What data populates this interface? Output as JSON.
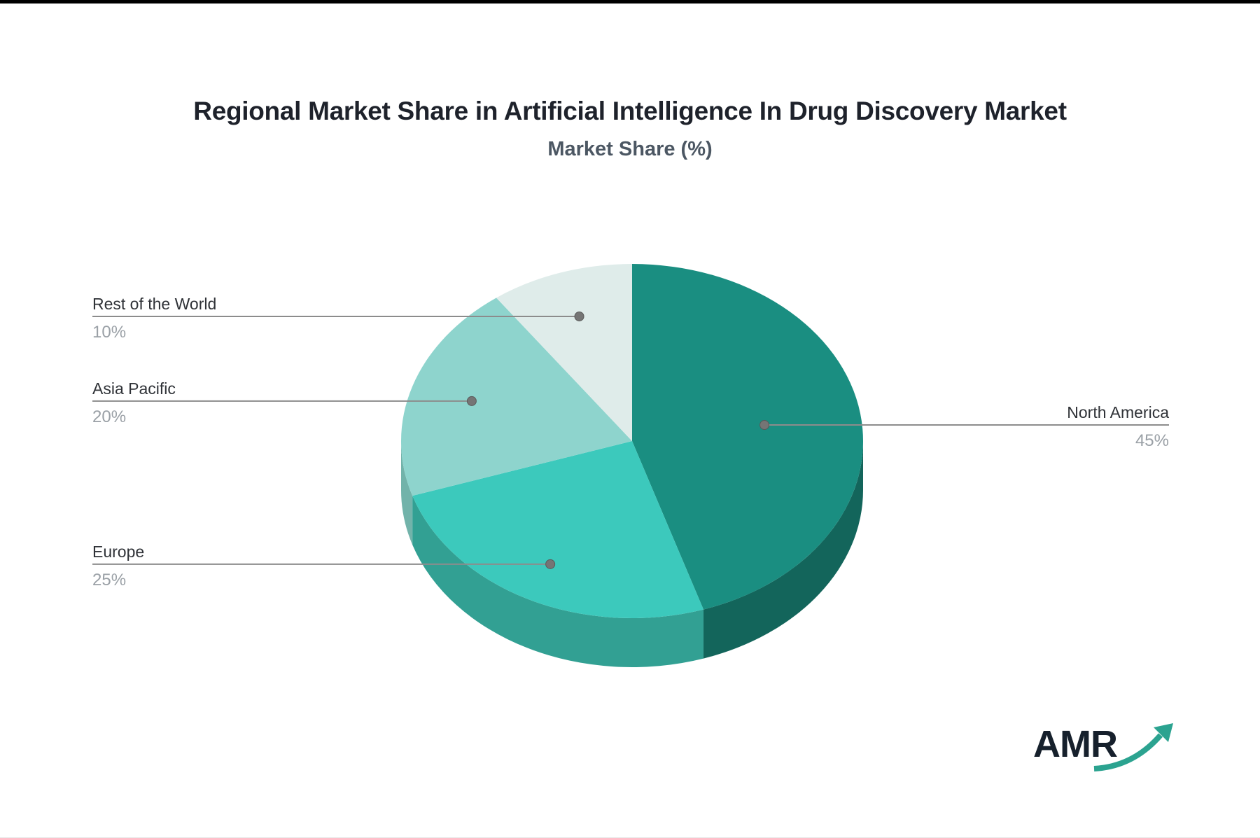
{
  "page": {
    "background": "#ffffff",
    "top_bar_color": "#000000"
  },
  "header": {
    "title": "Regional Market Share in Artificial Intelligence In Drug Discovery Market",
    "subtitle": "Market Share (%)"
  },
  "chart_data": {
    "type": "pie",
    "style": "3d",
    "title": "Regional Market Share in Artificial Intelligence In Drug Discovery Market",
    "subtitle": "Market Share (%)",
    "unit": "%",
    "start_angle_deg": 0,
    "direction": "clockwise",
    "legend": "none",
    "slices": [
      {
        "label": "North America",
        "value": 45,
        "display": "45%",
        "color": "#1A8E81",
        "side_color": "#13655B",
        "label_side": "right"
      },
      {
        "label": "Europe",
        "value": 25,
        "display": "25%",
        "color": "#3CC9BC",
        "side_color": "#32A093",
        "label_side": "left"
      },
      {
        "label": "Asia Pacific",
        "value": 20,
        "display": "20%",
        "color": "#8ED4CD",
        "side_color": "#72B3AA",
        "label_side": "left"
      },
      {
        "label": "Rest of the World",
        "value": 10,
        "display": "10%",
        "color": "#DFECEA",
        "side_color": "#BCD4D0",
        "label_side": "left"
      }
    ],
    "leader_line_color": "#8c8c8c",
    "leader_dot_color": "#757575",
    "label_text_color": "#2f3237",
    "value_text_color": "#9aa0a6"
  },
  "logo": {
    "text": "AMR",
    "arrow_icon": "trend-up-arrow",
    "text_color": "#16202c",
    "arrow_color": "#2BA390"
  }
}
